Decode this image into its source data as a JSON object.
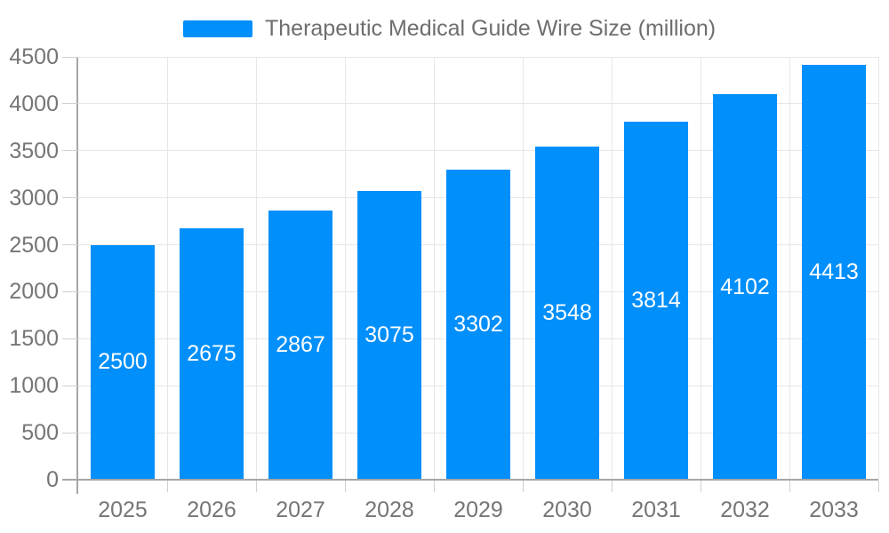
{
  "chart_data": {
    "type": "bar",
    "title": "Therapeutic Medical Guide Wire Size (million)",
    "categories": [
      "2025",
      "2026",
      "2027",
      "2028",
      "2029",
      "2030",
      "2031",
      "2032",
      "2033"
    ],
    "values": [
      2500,
      2675,
      2867,
      3075,
      3302,
      3548,
      3814,
      4102,
      4413
    ],
    "xlabel": "",
    "ylabel": "",
    "ylim": [
      0,
      4500
    ],
    "ytick_step": 500,
    "yticks": [
      0,
      500,
      1000,
      1500,
      2000,
      2500,
      3000,
      3500,
      4000,
      4500
    ],
    "grid": true,
    "legend_position": "top",
    "value_labels": "inside-center"
  },
  "colors": {
    "bar": "#008FFB",
    "grid": "#e7e7e7",
    "axis_line": "#a6a6a6",
    "tick": "#d0d0d0",
    "axis_label": "#757575",
    "legend_text": "#6e6e6e",
    "value_label": "#ffffff",
    "background": "#ffffff"
  }
}
